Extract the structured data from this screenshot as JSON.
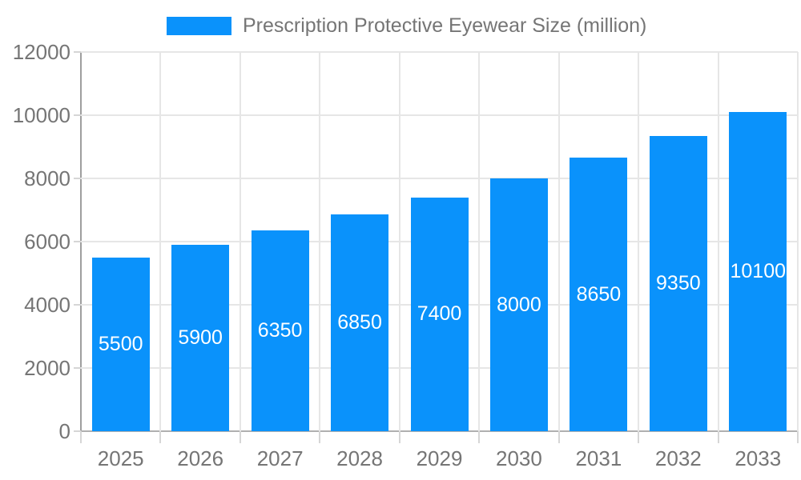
{
  "chart_data": {
    "type": "bar",
    "title": "Prescription Protective Eyewear Size (million)",
    "legend_entries": [
      "Prescription Protective Eyewear Size (million)"
    ],
    "legend_position": "top",
    "categories": [
      "2025",
      "2026",
      "2027",
      "2028",
      "2029",
      "2030",
      "2031",
      "2032",
      "2033"
    ],
    "series": [
      {
        "name": "Prescription Protective Eyewear Size (million)",
        "values": [
          5500,
          5900,
          6350,
          6850,
          7400,
          8000,
          8650,
          9350,
          10100
        ]
      }
    ],
    "bar_value_labels": [
      "5500",
      "5900",
      "6350",
      "6850",
      "7400",
      "8000",
      "8650",
      "9350",
      "10100"
    ],
    "xlabel": "",
    "ylabel": "",
    "ylim": [
      0,
      12000
    ],
    "y_tick_step": 2000,
    "y_tick_labels": [
      "0",
      "2000",
      "4000",
      "6000",
      "8000",
      "10000",
      "12000"
    ],
    "grid": true
  },
  "colors": {
    "bar": "#0A92FB",
    "gridline": "#e6e6e6",
    "axis_line": "#9e9e9e",
    "baseline": "#b0b0b0",
    "tick": "#d6d6d6",
    "axis_label": "#757575",
    "legend_text": "#757575",
    "bar_label": "#ffffff",
    "background": "#ffffff"
  }
}
